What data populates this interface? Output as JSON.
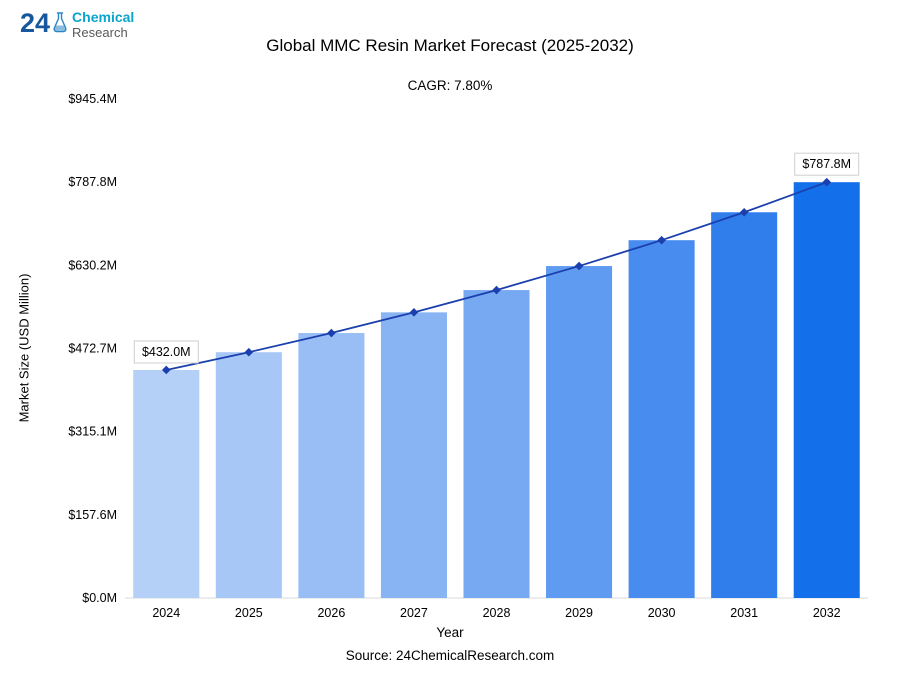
{
  "logo": {
    "number": "24",
    "chemical": "Chemical",
    "research": "Research"
  },
  "header": {
    "title": "Global MMC Resin Market Forecast (2025-2032)",
    "subtitle": "CAGR: 7.80%"
  },
  "chart_data": {
    "type": "bar",
    "title": "Global MMC Resin Market Forecast (2025-2032)",
    "subtitle": "CAGR: 7.80%",
    "xlabel": "Year",
    "ylabel": "Market Size (USD Million)",
    "categories": [
      "2024",
      "2025",
      "2026",
      "2027",
      "2028",
      "2029",
      "2030",
      "2031",
      "2032"
    ],
    "series": [
      {
        "name": "Market Size (USD Million)",
        "type": "bar",
        "values": [
          432.0,
          465.7,
          502.0,
          541.2,
          583.4,
          628.9,
          677.9,
          730.8,
          787.8
        ]
      },
      {
        "name": "Trend",
        "type": "line",
        "values": [
          432.0,
          465.7,
          502.0,
          541.2,
          583.4,
          628.9,
          677.9,
          730.8,
          787.8
        ]
      }
    ],
    "ylim": [
      0,
      945.4
    ],
    "yticks": [
      {
        "value": 0,
        "label": "$0.0M"
      },
      {
        "value": 157.6,
        "label": "$157.6M"
      },
      {
        "value": 315.1,
        "label": "$315.1M"
      },
      {
        "value": 472.7,
        "label": "$472.7M"
      },
      {
        "value": 630.2,
        "label": "$630.2M"
      },
      {
        "value": 787.8,
        "label": "$787.8M"
      },
      {
        "value": 945.4,
        "label": "$945.4M"
      }
    ],
    "annotations": [
      {
        "index": 0,
        "label": "$432.0M"
      },
      {
        "index": 8,
        "label": "$787.8M"
      }
    ],
    "bar_colors": [
      "#b5d0f7",
      "#a7c8f6",
      "#98bef5",
      "#89b4f3",
      "#76a9f2",
      "#5f9bf0",
      "#478cee",
      "#2f7eec",
      "#1470ea"
    ],
    "line_color": "#1c3fae",
    "grid": false,
    "legend": "none"
  },
  "footer": {
    "source": "Source: 24ChemicalResearch.com"
  }
}
